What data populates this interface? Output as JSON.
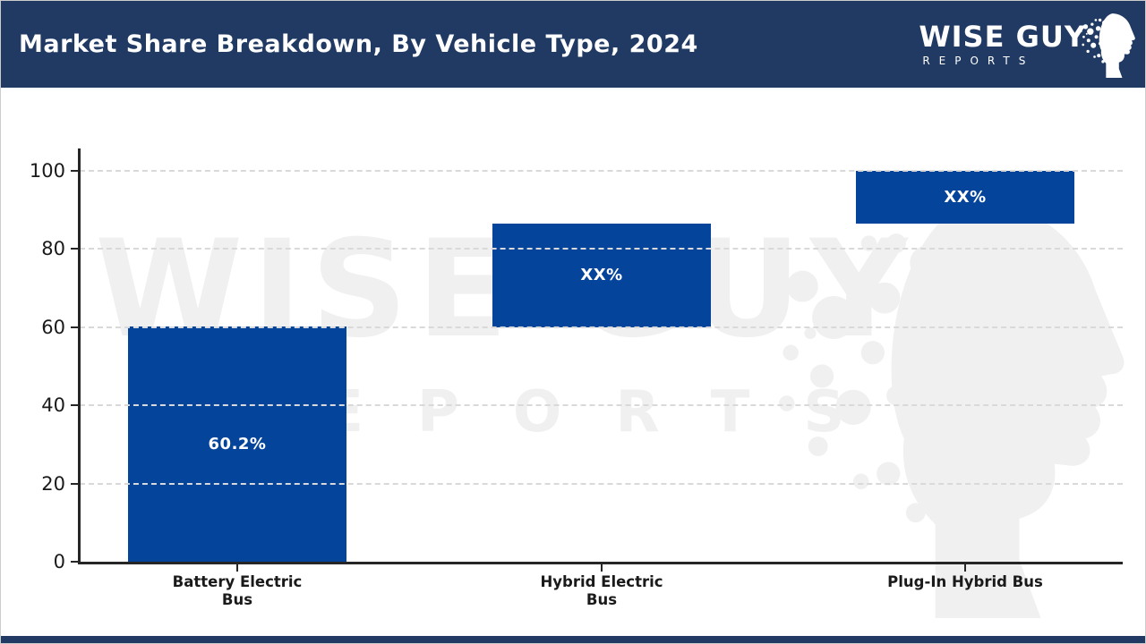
{
  "header": {
    "title": "Market Share Breakdown, By Vehicle Type, 2024",
    "logo": {
      "wordmark": "WISE GUY",
      "subtitle": "REPORTS"
    }
  },
  "watermark": {
    "wordmark": "WISE GUY",
    "subtitle": "REPORTS"
  },
  "chart_data": {
    "type": "bar",
    "variant": "floating-segment-waterfall",
    "title": "Market Share Breakdown, By Vehicle Type, 2024",
    "categories": [
      "Battery Electric\nBus",
      "Hybrid Electric\nBus",
      "Plug-In Hybrid Bus"
    ],
    "series": [
      {
        "name": "Market Share (%)",
        "segments": [
          {
            "category": "Battery Electric Bus",
            "from": 0,
            "to": 60.2,
            "label": "60.2%"
          },
          {
            "category": "Hybrid Electric Bus",
            "from": 60,
            "to": 86.5,
            "label": "XX%"
          },
          {
            "category": "Plug-In Hybrid Bus",
            "from": 86.5,
            "to": 100,
            "label": "XX%"
          }
        ]
      }
    ],
    "xlabel": "",
    "ylabel": "",
    "ylim": [
      0,
      100
    ],
    "yticks": [
      0,
      20,
      40,
      60,
      80,
      100
    ],
    "grid": true,
    "grid_style": "dashed",
    "legend_position": "none",
    "bar_color": "#05449b",
    "bar_label_color": "#ffffff"
  },
  "colors": {
    "header_bg": "#213a63",
    "footer_bg": "#213a63",
    "bar": "#05449b",
    "axis": "#262626",
    "grid": "#d9d9d9",
    "watermark": "#f0f0f0",
    "title_text": "#ffffff",
    "tick_text": "#1a1a1a"
  }
}
